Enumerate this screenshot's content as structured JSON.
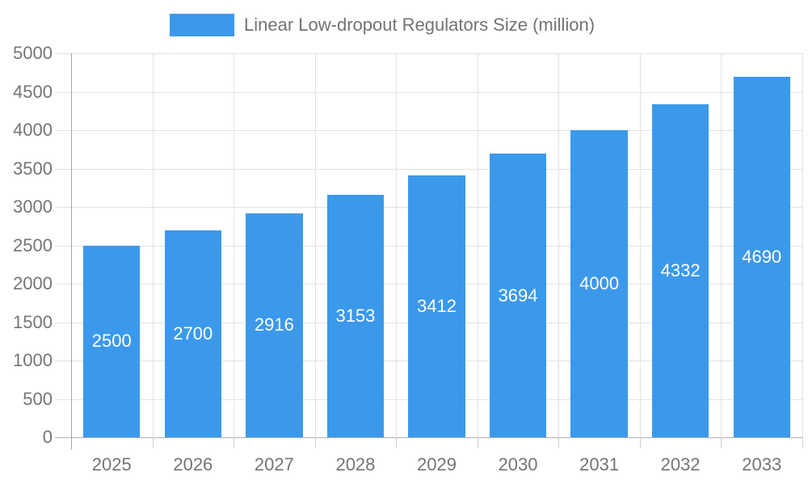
{
  "legend": {
    "label": "Linear Low-dropout Regulators Size (million)"
  },
  "chart_data": {
    "type": "bar",
    "title": "Linear Low-dropout Regulators Size (million)",
    "categories": [
      "2025",
      "2026",
      "2027",
      "2028",
      "2029",
      "2030",
      "2031",
      "2032",
      "2033"
    ],
    "values": [
      2500,
      2700,
      2916,
      3153,
      3412,
      3694,
      4000,
      4332,
      4690
    ],
    "series_name": "Linear Low-dropout Regulators Size (million)",
    "xlabel": "",
    "ylabel": "",
    "ylim": [
      0,
      5000
    ],
    "yticks": [
      0,
      500,
      1000,
      1500,
      2000,
      2500,
      3000,
      3500,
      4000,
      4500,
      5000
    ],
    "grid": true,
    "legend_position": "top",
    "bar_label_position": "center"
  },
  "colors": {
    "accent": "#3B99EC",
    "grid": "#e3e3e3",
    "axis": "#a3a3a3",
    "baseline": "#b3b3b3",
    "tick_text": "#757575",
    "legend_text": "#737373",
    "bar_label": "#ffffff",
    "background": "#ffffff"
  }
}
